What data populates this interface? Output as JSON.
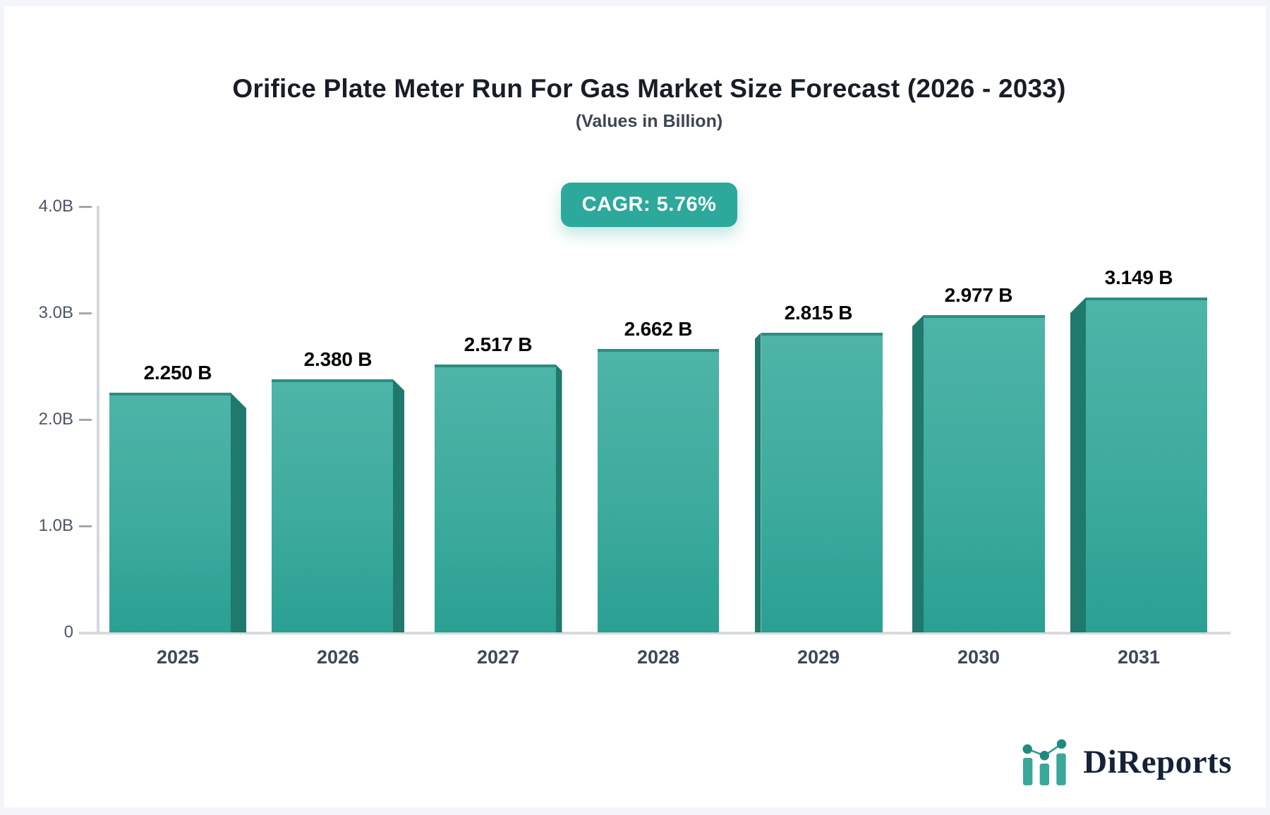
{
  "header": {
    "cagr_badge": "CAGR: 5.76%"
  },
  "chart_data": {
    "type": "bar",
    "title": "Orifice Plate Meter Run For Gas Market Size Forecast (2026 - 2033)",
    "subtitle": "(Values in Billion)",
    "categories": [
      "2025",
      "2026",
      "2027",
      "2028",
      "2029",
      "2030",
      "2031"
    ],
    "values": [
      2.25,
      2.38,
      2.517,
      2.662,
      2.815,
      2.977,
      3.149
    ],
    "value_labels": [
      "2.250 B",
      "2.380 B",
      "2.517 B",
      "2.662 B",
      "2.815 B",
      "2.977 B",
      "3.149 B"
    ],
    "xlabel": "",
    "ylabel": "",
    "ylim": [
      0,
      4.0
    ],
    "y_ticks": [
      {
        "value": 0,
        "label": "0"
      },
      {
        "value": 1,
        "label": "1.0B"
      },
      {
        "value": 2,
        "label": "2.0B"
      },
      {
        "value": 3,
        "label": "3.0B"
      },
      {
        "value": 4,
        "label": "4.0B"
      }
    ],
    "grid": false,
    "legend": false,
    "bar_style": "3d-perspective",
    "colors": {
      "bar_face_top": "#4eb4a8",
      "bar_face_bottom": "#2aa093",
      "bar_side": "#20796d",
      "bar_top_edge": "#2b8d81",
      "axis": "#d4d7dc",
      "tick_label": "#4d5666",
      "category_label": "#3e4858",
      "badge_background": "#2ca99b",
      "badge_text": "#ffffff"
    }
  },
  "logo": {
    "text": "DiReports",
    "icon": "bar-chart-logo-icon",
    "icon_bar_color": "#3aa79b",
    "icon_dot_color": "#1f8a80",
    "text_color": "#152238"
  }
}
